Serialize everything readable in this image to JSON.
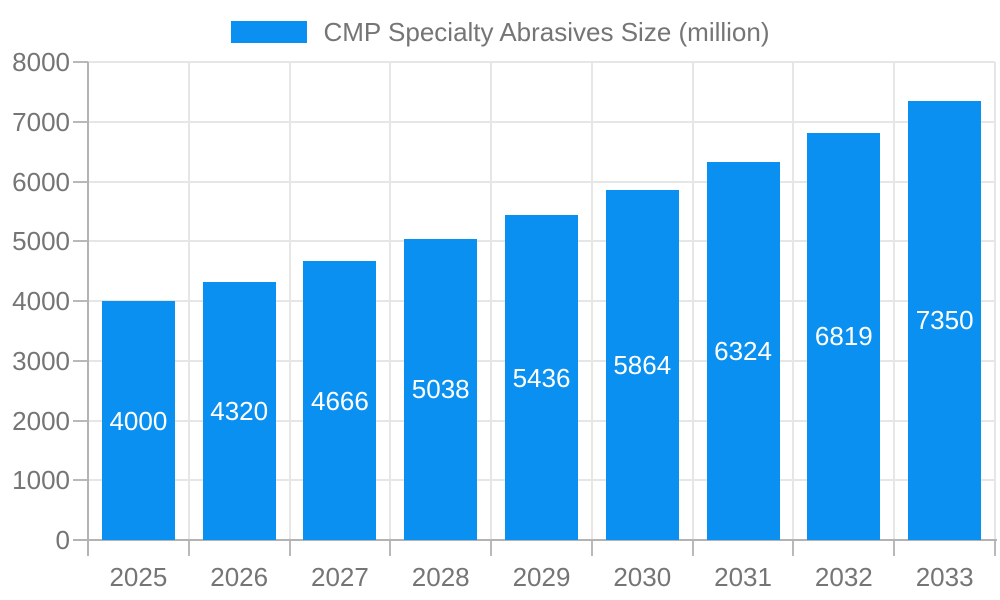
{
  "chart_data": {
    "type": "bar",
    "title": "",
    "xlabel": "",
    "ylabel": "",
    "legend_label": "CMP Specialty Abrasives Size (million)",
    "legend_position": "top",
    "categories": [
      "2025",
      "2026",
      "2027",
      "2028",
      "2029",
      "2030",
      "2031",
      "2032",
      "2033"
    ],
    "series": [
      {
        "name": "CMP Specialty Abrasives Size (million)",
        "values": [
          4000,
          4320,
          4666,
          5038,
          5436,
          5864,
          6324,
          6819,
          7350
        ]
      }
    ],
    "ylim": [
      0,
      8000
    ],
    "ytick_step": 1000,
    "ytick_labels": [
      "0",
      "1000",
      "2000",
      "3000",
      "4000",
      "5000",
      "6000",
      "7000",
      "8000"
    ],
    "grid": true,
    "colors": {
      "bar": "#0a90f0",
      "bar_label": "#ffffff",
      "axis": "#b3b3b3",
      "tick": "#b9b9b9",
      "grid": "#e6e6e6",
      "text": "#757575",
      "background": "#ffffff"
    }
  }
}
